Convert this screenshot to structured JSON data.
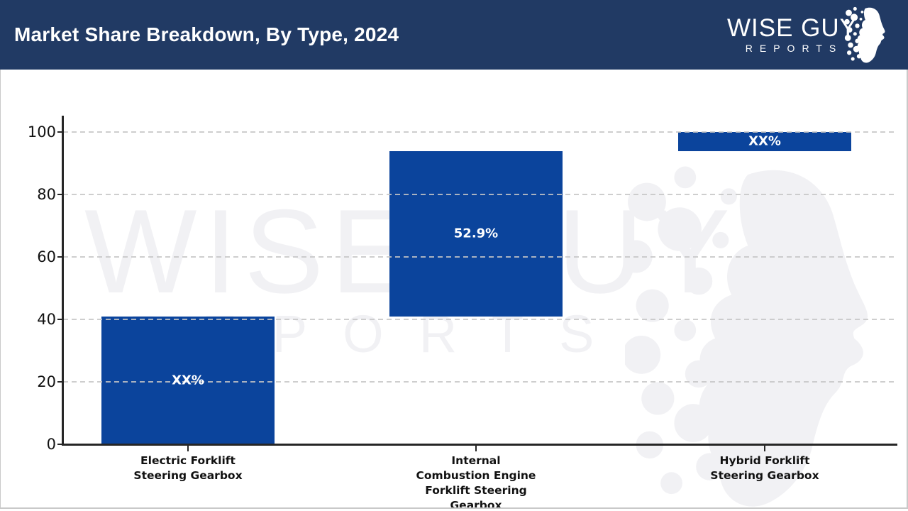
{
  "header": {
    "title": "Market Share Breakdown, By Type, 2024",
    "logo": {
      "line1": "WISE GUY",
      "line2": "REPORTS"
    }
  },
  "watermark": {
    "line1": "WISE GUY",
    "line2": "REPORTS"
  },
  "colors": {
    "header_bg": "#213A64",
    "bar": "#0B449C",
    "axis": "#262626",
    "gridline": "#C6C6C6",
    "bar_label": "#FFFFFF",
    "watermark": "#F1F1F4"
  },
  "chart_data": {
    "type": "bar",
    "subtype": "waterfall",
    "title": "Market Share Breakdown, By Type, 2024",
    "categories": [
      "Electric Forklift Steering Gearbox",
      "Internal Combustion Engine Forklift Steering Gearbox",
      "Hybrid Forklift Steering Gearbox"
    ],
    "category_lines": [
      [
        "Electric Forklift",
        "Steering Gearbox"
      ],
      [
        "Internal",
        "Combustion Engine",
        "Forklift Steering",
        "Gearbox"
      ],
      [
        "Hybrid Forklift",
        "Steering Gearbox"
      ]
    ],
    "segments": [
      {
        "start": 0,
        "end": 41.0,
        "label": "XX%"
      },
      {
        "start": 41.0,
        "end": 93.9,
        "label": "52.9%"
      },
      {
        "start": 93.9,
        "end": 100,
        "label": "XX%"
      }
    ],
    "ylim": [
      0,
      100
    ],
    "yticks": [
      0,
      20,
      40,
      60,
      80,
      100
    ],
    "grid": "dashed horizontal, drawn above bars",
    "legend": "none"
  }
}
